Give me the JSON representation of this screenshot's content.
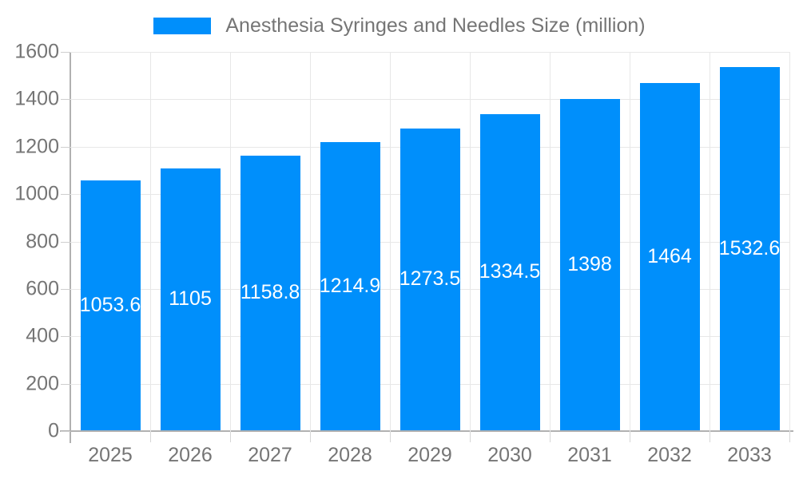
{
  "chart_data": {
    "type": "bar",
    "title": "",
    "categories": [
      "2025",
      "2026",
      "2027",
      "2028",
      "2029",
      "2030",
      "2031",
      "2032",
      "2033"
    ],
    "series": [
      {
        "name": "Anesthesia Syringes and Needles Size (million)",
        "values": [
          1053.6,
          1105,
          1158.8,
          1214.9,
          1273.5,
          1334.5,
          1398,
          1464,
          1532.6
        ],
        "value_labels": [
          "1053.6",
          "1105",
          "1158.8",
          "1214.9",
          "1273.5",
          "1334.5",
          "1398",
          "1464",
          "1532.6"
        ]
      }
    ],
    "xlabel": "",
    "ylabel": "",
    "ylim": [
      0,
      1600
    ],
    "yticks": [
      0,
      200,
      400,
      600,
      800,
      1000,
      1200,
      1400,
      1600
    ],
    "grid": true,
    "legend_position": "top",
    "data_labels": "inside-center",
    "colors": {
      "bar": "#008FFB",
      "data_label": "#FFFFFF",
      "axis_text": "#757575",
      "grid_line": "#E7E7E7",
      "axis_line": "#B1B1B1",
      "tick": "#CFCFCF"
    }
  }
}
